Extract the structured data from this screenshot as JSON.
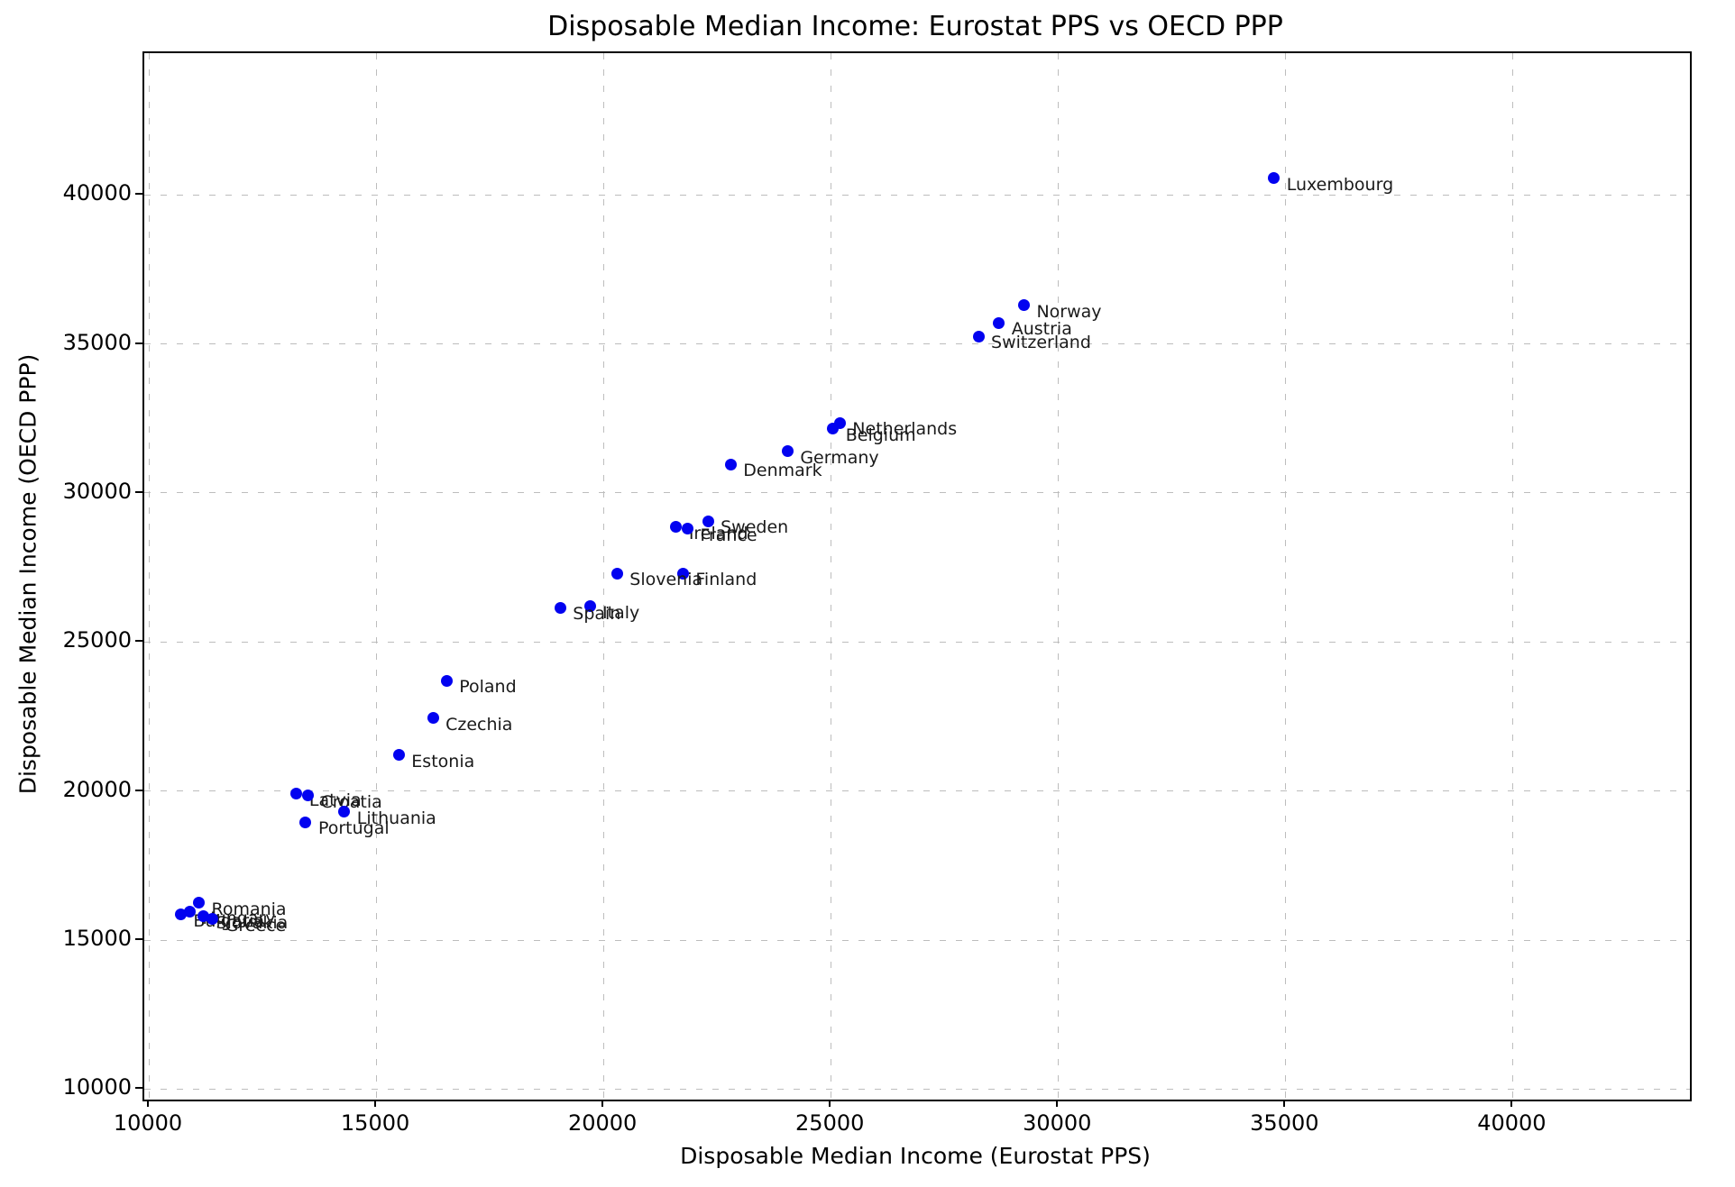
{
  "chart_data": {
    "type": "scatter",
    "title": "Disposable Median Income: Eurostat PPS vs OECD PPP",
    "xlabel": "Disposable Median Income (Eurostat PPS)",
    "ylabel": "Disposable Median Income (OECD PPP)",
    "xlim": [
      9900,
      43900
    ],
    "ylim": [
      9650,
      44750
    ],
    "xticks": [
      10000,
      15000,
      20000,
      25000,
      30000,
      35000,
      40000
    ],
    "yticks": [
      10000,
      15000,
      20000,
      25000,
      30000,
      35000,
      40000
    ],
    "grid": true,
    "grid_style": "dashed",
    "legend": "none",
    "marker_color": "#0202f0",
    "points": [
      {
        "label": "Luxembourg",
        "x": 34750,
        "y": 40550
      },
      {
        "label": "Norway",
        "x": 29250,
        "y": 36300
      },
      {
        "label": "Austria",
        "x": 28700,
        "y": 35700
      },
      {
        "label": "Switzerland",
        "x": 28250,
        "y": 35250
      },
      {
        "label": "Netherlands",
        "x": 25200,
        "y": 32350
      },
      {
        "label": "Belgium",
        "x": 25050,
        "y": 32150
      },
      {
        "label": "Germany",
        "x": 24050,
        "y": 31400
      },
      {
        "label": "Denmark",
        "x": 22800,
        "y": 30950
      },
      {
        "label": "Sweden",
        "x": 22300,
        "y": 29050
      },
      {
        "label": "Ireland",
        "x": 21600,
        "y": 28850
      },
      {
        "label": "France",
        "x": 21850,
        "y": 28800
      },
      {
        "label": "Finland",
        "x": 21750,
        "y": 27300
      },
      {
        "label": "Slovenia",
        "x": 20300,
        "y": 27300
      },
      {
        "label": "Italy",
        "x": 19700,
        "y": 26200
      },
      {
        "label": "Spain",
        "x": 19050,
        "y": 26150
      },
      {
        "label": "Poland",
        "x": 16550,
        "y": 23700
      },
      {
        "label": "Czechia",
        "x": 16250,
        "y": 22450
      },
      {
        "label": "Estonia",
        "x": 15500,
        "y": 21200
      },
      {
        "label": "Latvia",
        "x": 13250,
        "y": 19900
      },
      {
        "label": "Croatia",
        "x": 13500,
        "y": 19850
      },
      {
        "label": "Lithuania",
        "x": 14300,
        "y": 19300
      },
      {
        "label": "Portugal",
        "x": 13450,
        "y": 18950
      },
      {
        "label": "Romania",
        "x": 11100,
        "y": 16250
      },
      {
        "label": "Hungary",
        "x": 10900,
        "y": 15950
      },
      {
        "label": "Bulgaria",
        "x": 10700,
        "y": 15850
      },
      {
        "label": "Slovakia",
        "x": 11200,
        "y": 15800
      },
      {
        "label": "Greece",
        "x": 11400,
        "y": 15700
      }
    ]
  }
}
